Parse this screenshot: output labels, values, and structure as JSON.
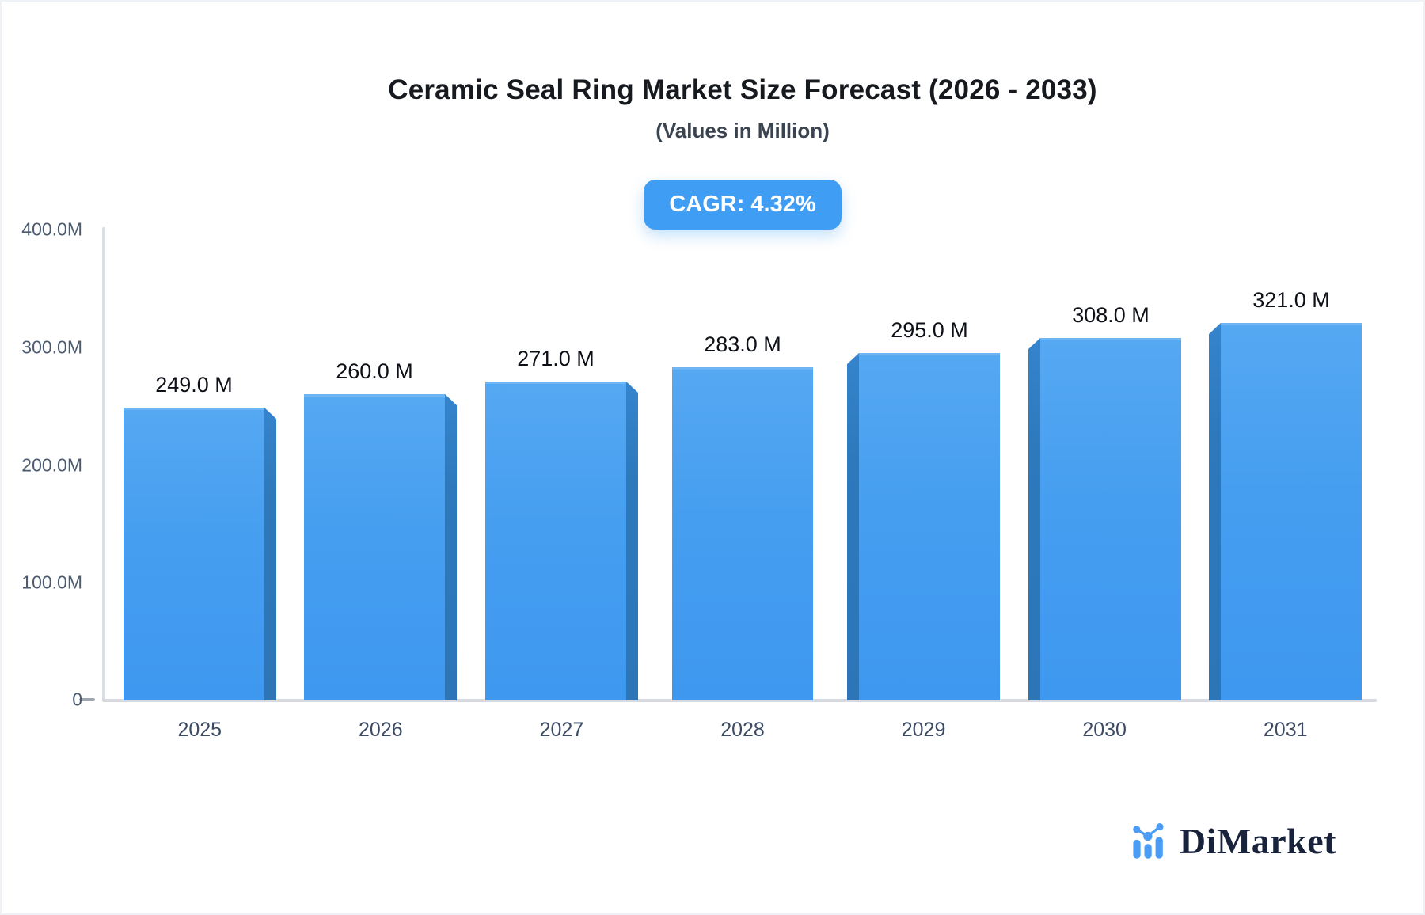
{
  "page": {
    "background": "#ffffff",
    "border_color": "#eef1f6"
  },
  "header": {
    "title": "Ceramic Seal Ring Market Size Forecast (2026 - 2033)",
    "subtitle": "(Values in Million)",
    "cagr_badge": {
      "label": "CAGR: 4.32%",
      "bg_color": "#3F9DF3",
      "text_color": "#FFFFFF"
    }
  },
  "chart_data": {
    "type": "bar",
    "title": "Ceramic Seal Ring Market Size Forecast (2026 - 2033)",
    "subtitle": "(Values in Million)",
    "cagr_percent": 4.32,
    "categories": [
      "2025",
      "2026",
      "2027",
      "2028",
      "2029",
      "2030",
      "2031"
    ],
    "values": [
      249,
      260,
      271,
      283,
      295,
      308,
      321
    ],
    "value_labels": [
      "249.0 M",
      "260.0 M",
      "271.0 M",
      "283.0 M",
      "295.0 M",
      "308.0 M",
      "321.0 M"
    ],
    "xlabel": "",
    "ylabel": "",
    "ylim": [
      0,
      400
    ],
    "y_ticks": [
      {
        "value": 400,
        "label": "400.0M"
      },
      {
        "value": 300,
        "label": "300.0M"
      },
      {
        "value": 200,
        "label": "200.0M"
      },
      {
        "value": 100,
        "label": "100.0M"
      },
      {
        "value": 0,
        "label": "0"
      }
    ],
    "grid": false,
    "legend": null,
    "style_3d": true,
    "bar_front_color_top": "#55A8F2",
    "bar_front_color_bottom": "#3E98EF",
    "bar_side_color": "#2D79BC",
    "axis_color": "#D8DBE1",
    "value_label_color": "#0D1117",
    "tick_label_color": "#4B5A6E"
  },
  "footer": {
    "brand": "DiMarket",
    "logo_icon": "bar-chart-trend-icon",
    "brand_color": "#19223B",
    "icon_color": "#4B9CF4"
  }
}
